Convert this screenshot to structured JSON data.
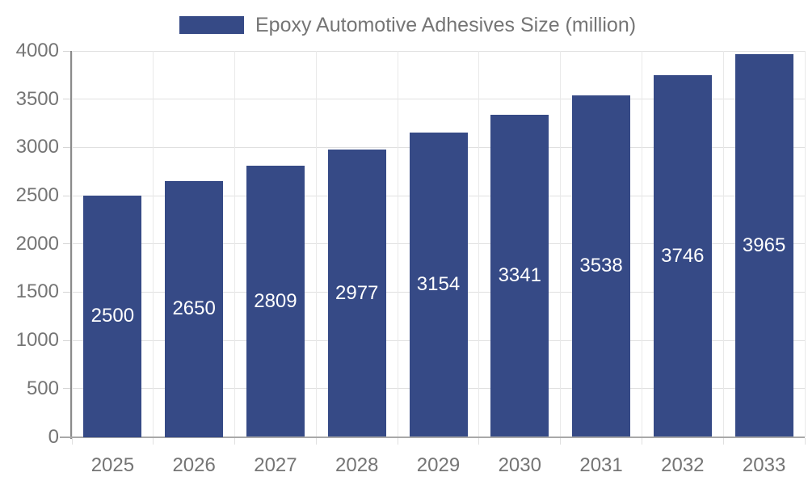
{
  "legend": {
    "label": "Epoxy Automotive Adhesives Size (million)"
  },
  "chart_data": {
    "type": "bar",
    "title": "",
    "series_name": "Epoxy Automotive Adhesives Size (million)",
    "categories": [
      "2025",
      "2026",
      "2027",
      "2028",
      "2029",
      "2030",
      "2031",
      "2032",
      "2033"
    ],
    "values": [
      2500,
      2650,
      2809,
      2977,
      3154,
      3341,
      3538,
      3746,
      3965
    ],
    "xlabel": "",
    "ylabel": "",
    "ylim": [
      0,
      4000
    ],
    "yticks": [
      0,
      500,
      1000,
      1500,
      2000,
      2500,
      3000,
      3500,
      4000
    ],
    "grid": true,
    "legend_position": "top",
    "value_labels": "inside-center"
  },
  "colors": {
    "bar": "#364a86",
    "value_label_text": "#ffffff",
    "grid_horizontal": "#e0e0e0",
    "grid_vertical": "#e9e9e9",
    "y_axis_line": "#8a8a8a",
    "x_axis_line": "#a8a8a8",
    "tick": "#d5d5d5",
    "axis_text": "#757575",
    "legend_text": "#757575",
    "background": "#ffffff"
  }
}
